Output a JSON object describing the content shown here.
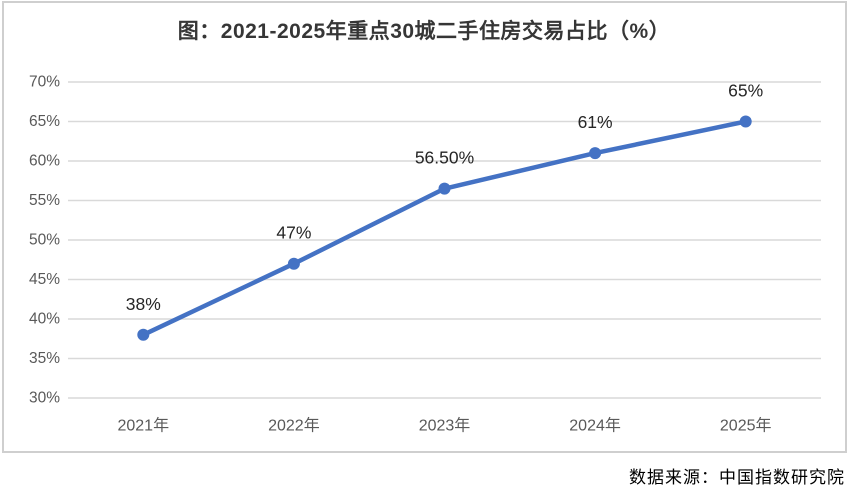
{
  "title": "图：2021-2025年重点30城二手住房交易占比（%）",
  "source": "数据来源：中国指数研究院",
  "chart_data": {
    "type": "line",
    "title": "图：2021-2025年重点30城二手住房交易占比（%）",
    "categories": [
      "2021年",
      "2022年",
      "2023年",
      "2024年",
      "2025年"
    ],
    "series": [
      {
        "name": "重点30城二手住房交易占比",
        "values": [
          38,
          47,
          56.5,
          61,
          65
        ],
        "data_labels": [
          "38%",
          "47%",
          "56.50%",
          "61%",
          "65%"
        ]
      }
    ],
    "xlabel": "",
    "ylabel": "",
    "ylim": [
      30,
      70
    ],
    "ytick_step": 5,
    "ytick_labels": [
      "30%",
      "35%",
      "40%",
      "45%",
      "50%",
      "55%",
      "60%",
      "65%",
      "70%"
    ],
    "grid": true,
    "legend_position": "none",
    "colors": {
      "line": "#4472C4",
      "marker": "#4472C4",
      "gridline": "#d9d9d9",
      "axis_tick_label": "#595959",
      "data_label": "#262626",
      "title": "#363636",
      "frame_border": "#cfcfcf",
      "background": "#ffffff"
    }
  }
}
